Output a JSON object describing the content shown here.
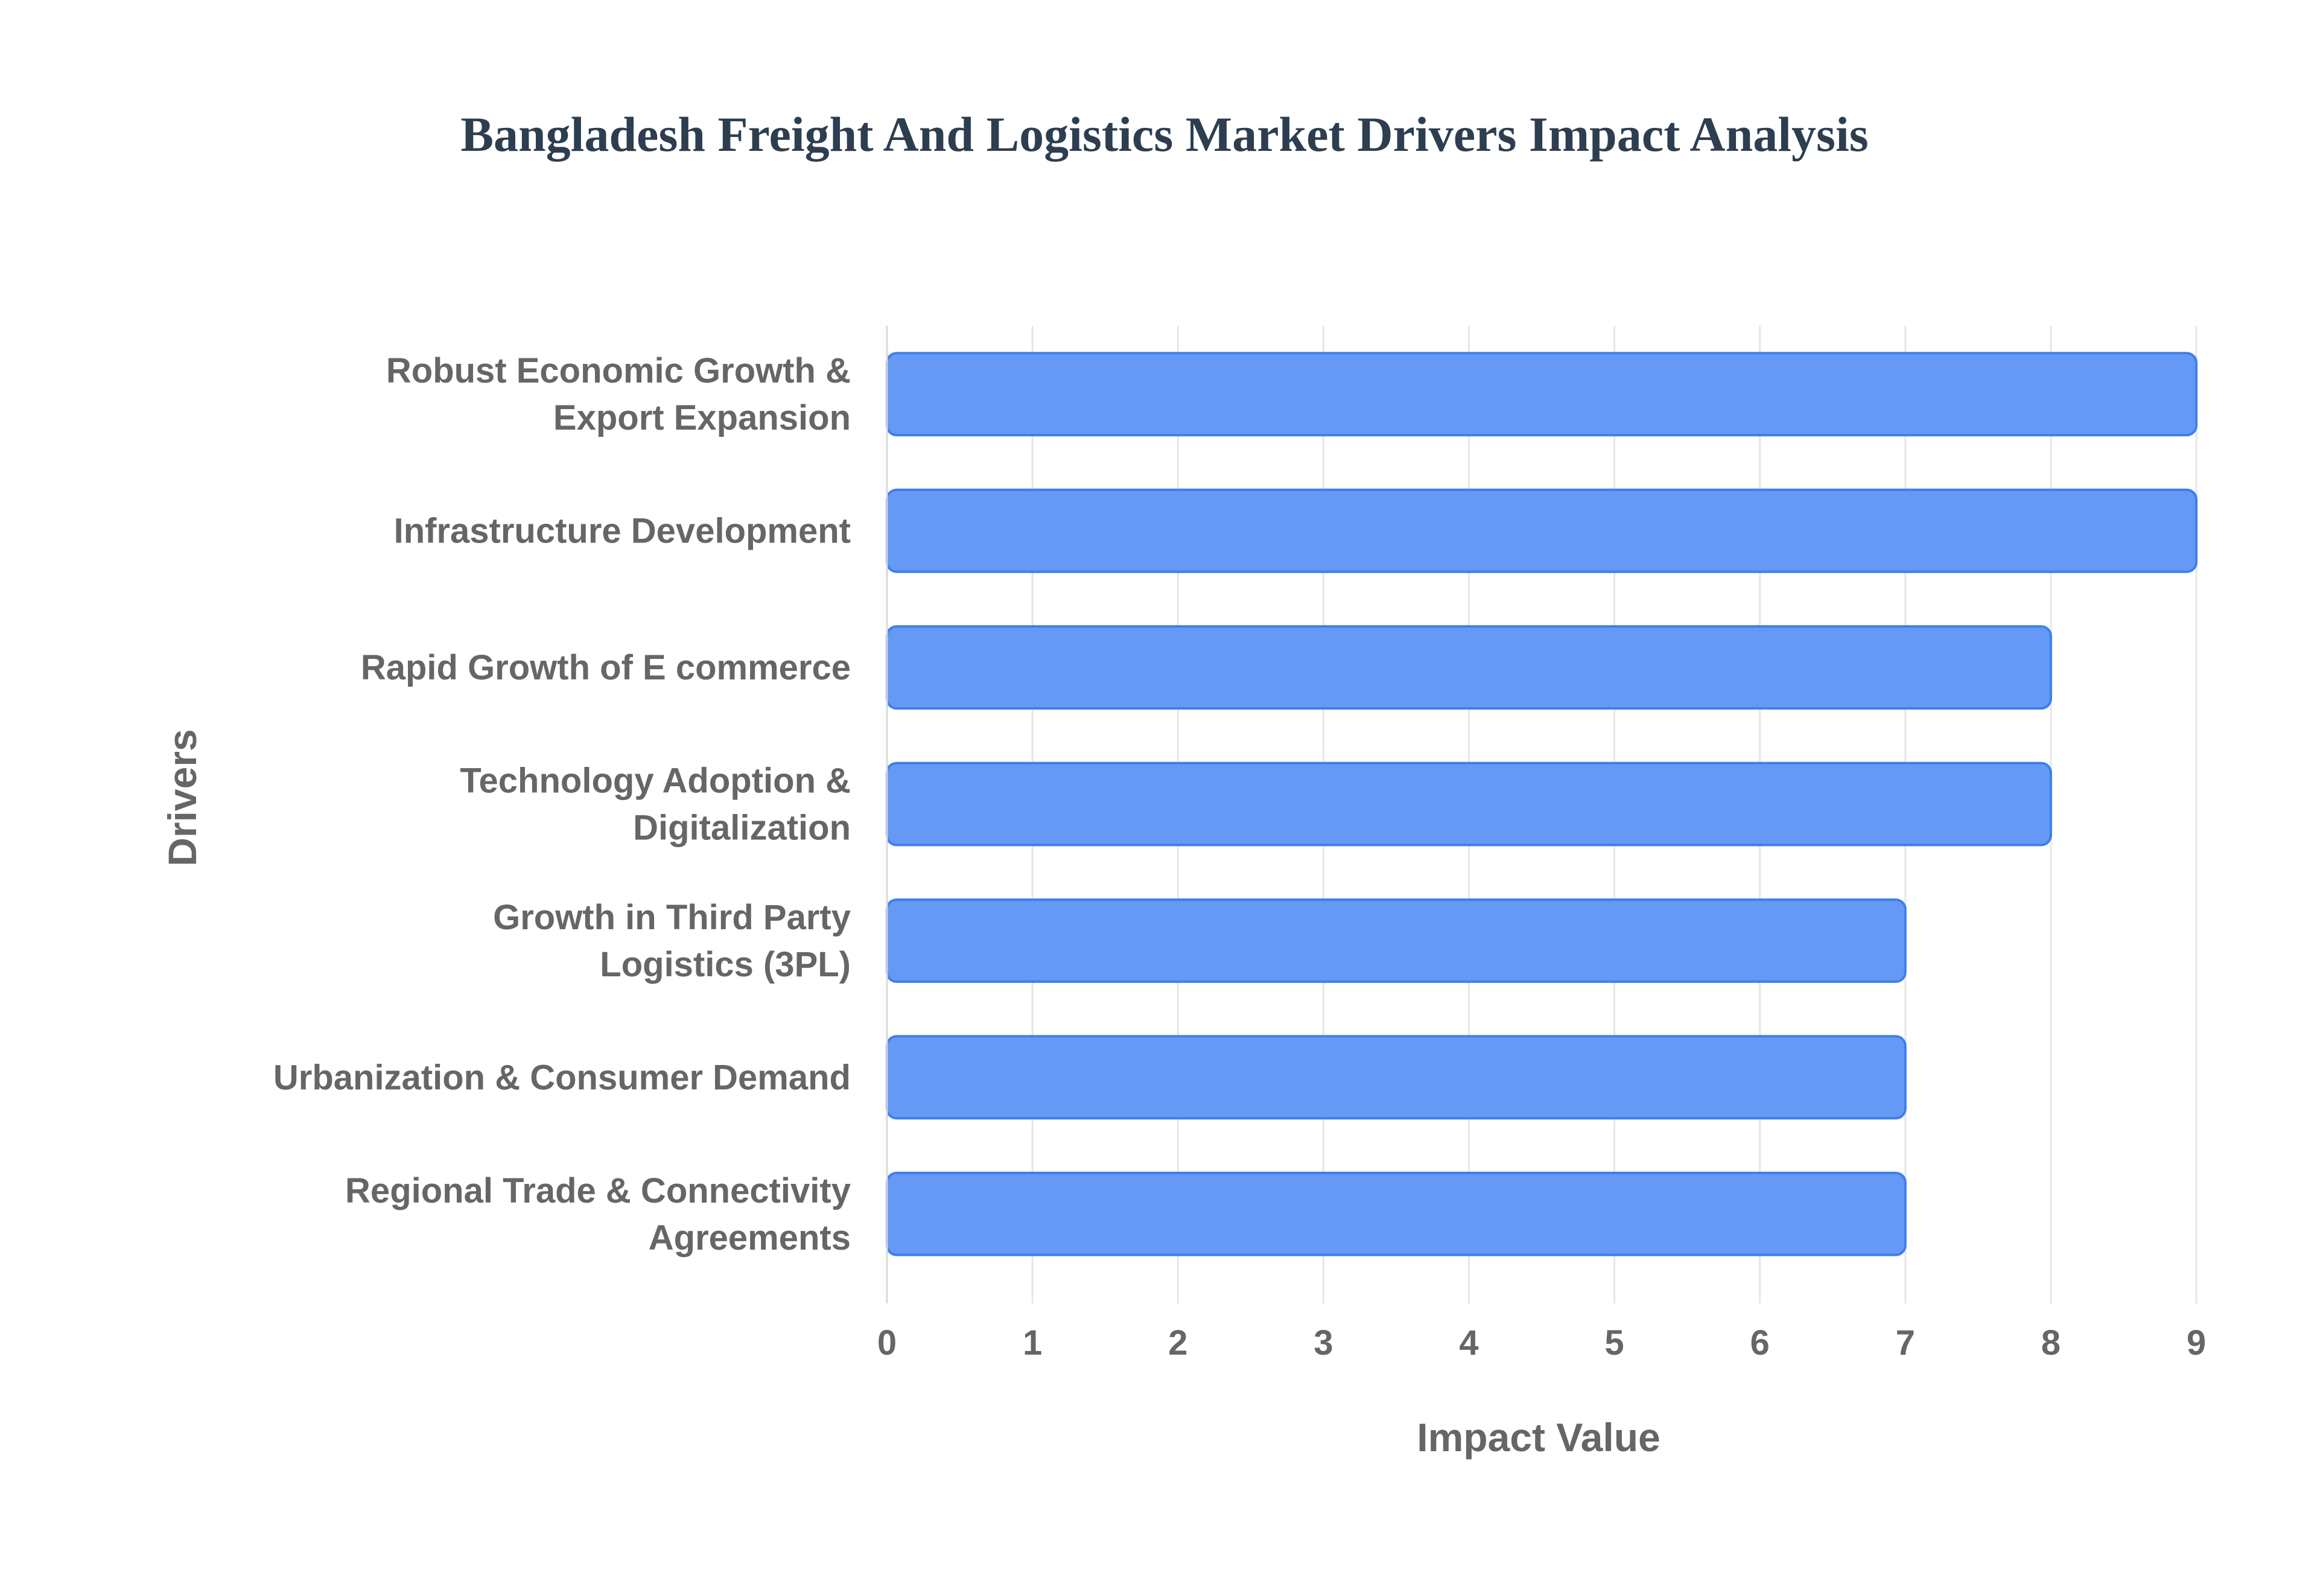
{
  "chart_data": {
    "type": "bar",
    "orientation": "horizontal",
    "title": "Bangladesh Freight And Logistics Market Drivers Impact Analysis",
    "xlabel": "Impact Value",
    "ylabel": "Drivers",
    "categories": [
      [
        "Robust Economic Growth &",
        "Export Expansion"
      ],
      [
        "Infrastructure Development"
      ],
      [
        "Rapid Growth of E commerce"
      ],
      [
        "Technology Adoption &",
        "Digitalization"
      ],
      [
        "Growth in Third Party",
        "Logistics (3PL)"
      ],
      [
        "Urbanization & Consumer Demand"
      ],
      [
        "Regional Trade & Connectivity",
        "Agreements"
      ]
    ],
    "values": [
      9,
      9,
      8,
      8,
      7,
      7,
      7
    ],
    "xlim": [
      0,
      9
    ],
    "xticks": [
      "0",
      "1",
      "2",
      "3",
      "4",
      "5",
      "6",
      "7",
      "8",
      "9"
    ],
    "grid": true,
    "colors": {
      "bar_fill": "#6699f5",
      "bar_stroke": "#3f7fe9",
      "title": "#2c3e50",
      "text": "#666666"
    }
  }
}
